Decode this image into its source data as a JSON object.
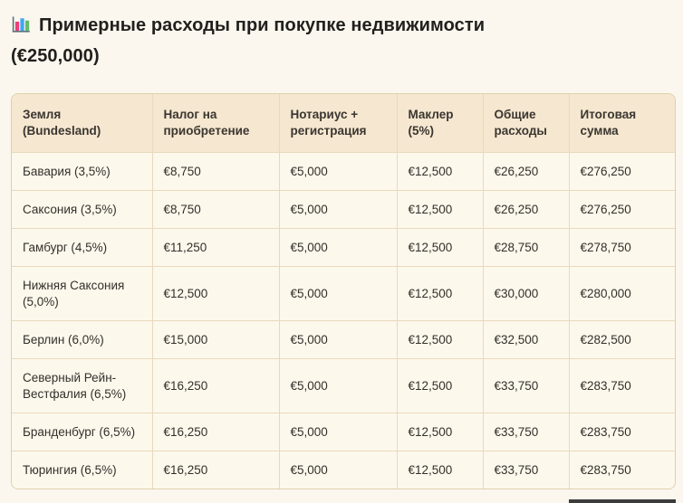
{
  "header": {
    "icon": "bar-chart-emoji",
    "title_line1": "Примерные расходы при покупке недвижимости",
    "title_line2": "(€250,000)"
  },
  "chart_data": {
    "type": "table",
    "title": "Примерные расходы при покупке недвижимости (€250,000)",
    "columns": [
      "Земля (Bundesland)",
      "Налог на приобретение",
      "Нотариус + регистрация",
      "Маклер (5%)",
      "Общие расходы",
      "Итоговая сумма"
    ],
    "rows": [
      [
        "Бавария (3,5%)",
        "€8,750",
        "€5,000",
        "€12,500",
        "€26,250",
        "€276,250"
      ],
      [
        "Саксония (3,5%)",
        "€8,750",
        "€5,000",
        "€12,500",
        "€26,250",
        "€276,250"
      ],
      [
        "Гамбург (4,5%)",
        "€11,250",
        "€5,000",
        "€12,500",
        "€28,750",
        "€278,750"
      ],
      [
        "Нижняя Саксония (5,0%)",
        "€12,500",
        "€5,000",
        "€12,500",
        "€30,000",
        "€280,000"
      ],
      [
        "Берлин (6,0%)",
        "€15,000",
        "€5,000",
        "€12,500",
        "€32,500",
        "€282,500"
      ],
      [
        "Северный Рейн-Вестфалия (6,5%)",
        "€16,250",
        "€5,000",
        "€12,500",
        "€33,750",
        "€283,750"
      ],
      [
        "Бранденбург (6,5%)",
        "€16,250",
        "€5,000",
        "€12,500",
        "€33,750",
        "€283,750"
      ],
      [
        "Тюрингия (6,5%)",
        "€16,250",
        "€5,000",
        "€12,500",
        "€33,750",
        "€283,750"
      ]
    ]
  },
  "colors": {
    "page_background": "#fbf7ee",
    "table_header_background": "#f5e7d0",
    "table_row_background": "#fdf8ec",
    "table_border": "#e9d9bc",
    "title_text": "#21201e",
    "body_text": "#33302b",
    "emoji_pink": "#ec407a",
    "emoji_blue": "#42a5f5",
    "emoji_green": "#66bb6a",
    "bottom_strip": "#3c3c3c"
  }
}
